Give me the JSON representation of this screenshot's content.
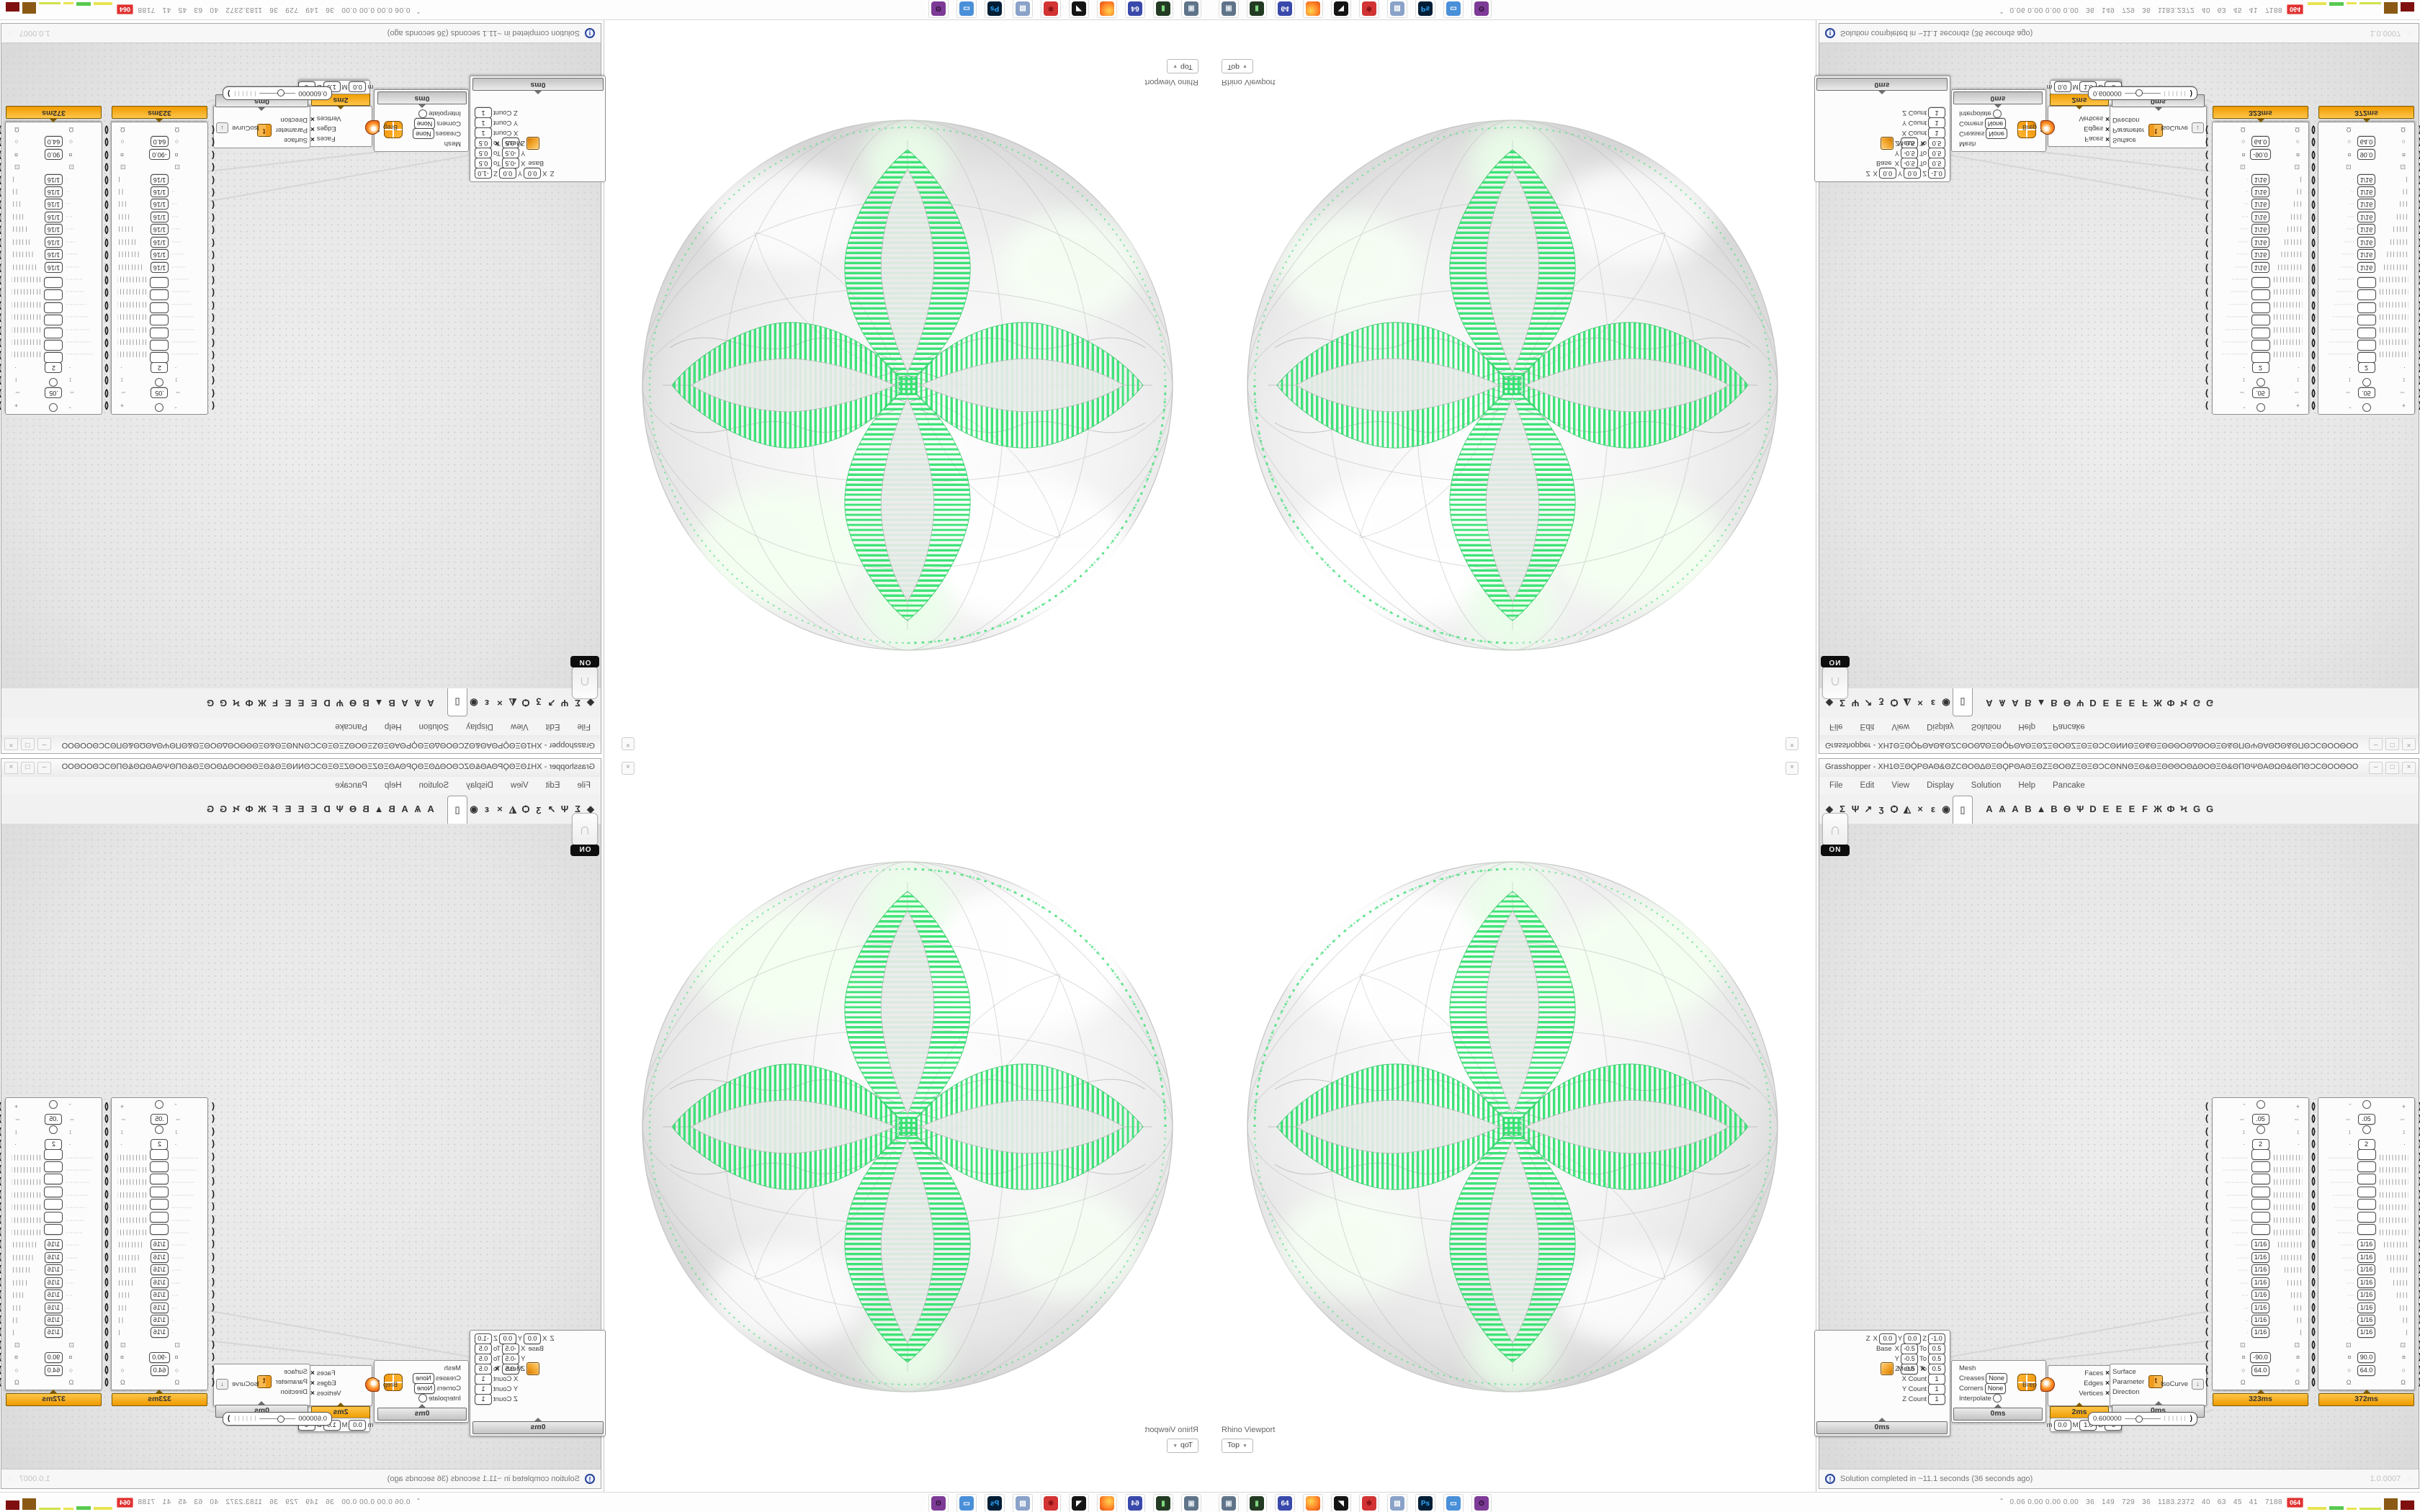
{
  "accent_colors": {
    "green": "#35e272",
    "orange_bar": "#ee9a00",
    "red_badge": "#e03131",
    "canvas": "#e6e6e6"
  },
  "viewport": {
    "label": "Rhino Viewport",
    "tab": "Top",
    "tab_arrow": "▼",
    "close": "×"
  },
  "gh": {
    "title": "Grasshopper - XH1ΘΞΘϘΡΘΑΘ&ΘΖϹΘΟΘΔΘΞΘϘΡΘΑΘΞΘΖΞΘΟΘΖΞΘΞΘϽϹΘΝΝΘΞΘ&ΘΞΘΘΘΟΘΔΘΟΘΞΘ&ΘΠΘΨΘΑΘΩΘ&ΘΠΘϽϹΘΟΟΘΟΟΘΘΟΘΟΟΟΘΟϽ",
    "win_buttons": {
      "min": "–",
      "max": "□",
      "close": "×"
    },
    "menu": [
      "File",
      "Edit",
      "View",
      "Display",
      "Solution",
      "Help",
      "Pancake"
    ],
    "tabs": {
      "glyphs": [
        "◆",
        "Σ",
        "Ψ",
        "↗",
        "ʒ",
        "Ѻ",
        "◭",
        "×",
        "ε",
        "◉",
        "▯",
        "A",
        "Ѧ",
        "A",
        "B",
        "▲",
        "B",
        "Ѳ",
        "Ѱ",
        "D",
        "E",
        "E",
        "E",
        "F",
        "Ж",
        "Ф",
        "Ϟ",
        "G",
        "G"
      ],
      "selected_index": 10
    },
    "widget": {
      "glyph": "∩",
      "on_label": "ON"
    },
    "status": {
      "text": "Solution completed in ~11.1 seconds (36 seconds ago)",
      "version": "1.0.0007"
    },
    "c1": {
      "plane": [
        {
          "t": "Z"
        },
        {
          "t": "X"
        },
        {
          "b": "0.0"
        },
        {
          "t": "Y"
        },
        {
          "b": "0.0"
        },
        {
          "t": "Z"
        },
        {
          "b": "-1.0"
        }
      ],
      "base_x": [
        {
          "t": "Base"
        },
        {
          "t": "X"
        },
        {
          "b": "-0.5"
        },
        {
          "t": "To"
        },
        {
          "b": "0.5"
        }
      ],
      "base_y": [
        {
          "t": "Y"
        },
        {
          "b": "-0.5"
        },
        {
          "t": "To"
        },
        {
          "b": "0.5"
        }
      ],
      "base_z": [
        {
          "t": "Z"
        },
        {
          "b": "-0.5"
        },
        {
          "t": "To"
        },
        {
          "b": "0.5"
        }
      ],
      "count_x": [
        {
          "t": "X Count"
        },
        {
          "b": "1"
        }
      ],
      "count_y": [
        {
          "t": "Y Count"
        },
        {
          "b": "1"
        }
      ],
      "count_z": [
        {
          "t": "Z Count"
        },
        {
          "b": "1"
        }
      ],
      "out": "Mesh",
      "time": "0ms"
    },
    "c2": {
      "in_title": "Mesh",
      "creases": [
        {
          "t": "Creases"
        },
        {
          "b": "None"
        }
      ],
      "corners": [
        {
          "t": "Corners"
        },
        {
          "b": "None"
        }
      ],
      "interp": [
        {
          "t": "Interpolate"
        },
        {
          "k": "knob"
        }
      ],
      "out": "SubD",
      "time": "0ms"
    },
    "c3": {
      "in": "Brep",
      "outs": [
        "Faces",
        "Edges",
        "Vertices"
      ],
      "time": "2ms",
      "mini": [
        {
          "t": "m"
        },
        {
          "b": "0.0"
        },
        {
          "t": "M"
        },
        {
          "b": "1.0"
        },
        {
          "t": "D"
        },
        {
          "b": "6"
        }
      ]
    },
    "c4": {
      "ins": [
        "Surface",
        "Parameter",
        "Direction"
      ],
      "out": "IsoCurve",
      "time": "0ms"
    },
    "slider": {
      "value": "0.600000"
    },
    "seq_rows": [
      {
        "ls": "ˆ",
        "k": "knob",
        "rs": "+"
      },
      {
        "ls": "⇔",
        "v": ".05",
        "rs": "⇔"
      },
      {
        "ls": "↕",
        "k": "knob",
        "rs": "↕"
      },
      {
        "ls": "·",
        "v": "2",
        "rs": "·"
      },
      {
        "d": 16,
        "box": "empty",
        "t": 16
      },
      {
        "d": 15,
        "box": "empty",
        "t": 15
      },
      {
        "d": 14,
        "box": "empty",
        "t": 14
      },
      {
        "d": 13,
        "box": "empty",
        "t": 13
      },
      {
        "d": 12,
        "box": "empty",
        "t": 12
      },
      {
        "d": 11,
        "box": "empty",
        "t": 11
      },
      {
        "d": 10,
        "box": "empty",
        "t": 10
      },
      {
        "d": 8,
        "v": "1/16",
        "t": 8
      },
      {
        "d": 7,
        "v": "1/16",
        "t": 7
      },
      {
        "d": 6,
        "v": "1/16",
        "t": 6
      },
      {
        "d": 5,
        "v": "1/16",
        "t": 5
      },
      {
        "d": 4,
        "v": "1/16",
        "t": 4
      },
      {
        "d": 3,
        "v": "1/16",
        "t": 3
      },
      {
        "d": 2,
        "v": "1/16",
        "t": 2
      },
      {
        "d": 1,
        "v": "1/16",
        "t": 1
      },
      {
        "ls": "⊡",
        "rs": "⊡"
      },
      {
        "ls": "¤",
        "v": "PAN",
        "rs": "¤"
      },
      {
        "ls": "○",
        "v": "64.0",
        "rs": "○"
      },
      {
        "ls": "Ω",
        "rs": "Ω"
      }
    ],
    "sequencers": [
      {
        "pan": "-90.0",
        "footer": "323ms"
      },
      {
        "pan": "90.0",
        "footer": "372ms"
      }
    ]
  },
  "taskbar": {
    "apps": [
      {
        "name": "display-settings-icon",
        "bg": "#5f7488",
        "glyph": "▣",
        "fg": "#dfe8ef"
      },
      {
        "name": "recorder-icon",
        "bg": "#233a23",
        "glyph": "▮",
        "fg": "#7fd67f"
      },
      {
        "name": "installer-64-icon",
        "bg": "#3949ab",
        "glyph": "64",
        "fg": "#ffffff"
      },
      {
        "name": "firefox-icon",
        "bg": "radial-gradient(circle at 35% 35%, #ffd54f, #ff7d26 60%, #d64a0e)",
        "glyph": "",
        "fg": "#ffffff"
      },
      {
        "name": "black-fox-icon",
        "bg": "#141414",
        "glyph": "◥",
        "fg": "#f5f5f5"
      },
      {
        "name": "red-knot-icon",
        "bg": "#d23333",
        "glyph": "✱",
        "fg": "#8c1414"
      },
      {
        "name": "file-manager-icon",
        "bg": "#8aa2c8",
        "glyph": "▤",
        "fg": "#ffffff"
      },
      {
        "name": "photoshop-icon",
        "bg": "#001e36",
        "glyph": "Ps",
        "fg": "#31a8ff"
      },
      {
        "name": "remote-desktop-icon",
        "bg": "#4a90d9",
        "glyph": "▭",
        "fg": "#ffffff"
      },
      {
        "name": "owl-purple-icon",
        "bg": "#7d3a96",
        "glyph": "ʘ",
        "fg": "#2b1133"
      }
    ],
    "tray": {
      "chevron": "ˆ",
      "stats": "0.06 0.00 0.00 0.00   36   149   729   36   1183.2372   40   63   45   41   7188",
      "badge": "064",
      "bars": [
        {
          "c": "#e8e452",
          "w": 26,
          "h": 4
        },
        {
          "c": "#57c94f",
          "w": 20,
          "h": 5
        },
        {
          "c": "#e8e452",
          "w": 14,
          "h": 3
        },
        {
          "c": "#cfe24e",
          "w": 30,
          "h": 3
        },
        {
          "c": "#8a5a15",
          "w": 19,
          "h": 16
        },
        {
          "c": "#801010",
          "w": 19,
          "h": 13
        }
      ]
    }
  }
}
